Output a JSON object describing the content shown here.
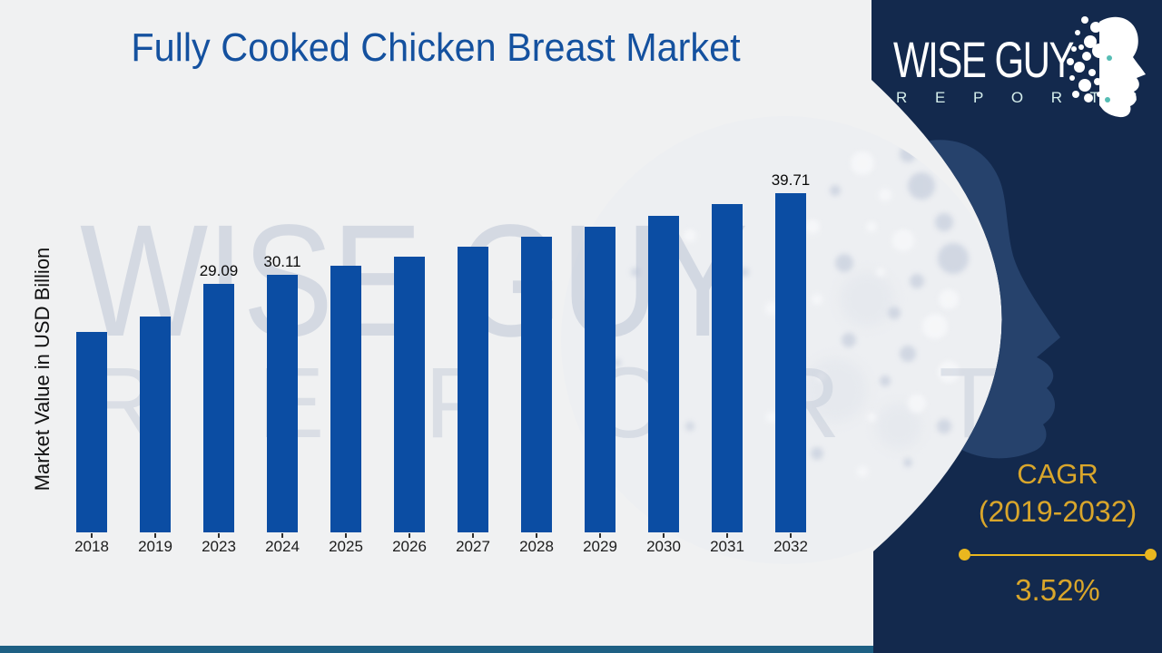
{
  "title": "Fully Cooked Chicken Breast Market",
  "watermark": {
    "line1": "WISE GUY",
    "line2": "REPORTS"
  },
  "brand": {
    "wordmark": "WISE GUY",
    "sub": "REPORTS"
  },
  "cagr": {
    "label": "CAGR",
    "range": "(2019-2032)",
    "value": "3.52%"
  },
  "chart_data": {
    "type": "bar",
    "title": "Fully Cooked Chicken Breast Market",
    "xlabel": "",
    "ylabel": "Market Value in USD Billion",
    "categories": [
      "2018",
      "2019",
      "2023",
      "2024",
      "2025",
      "2026",
      "2027",
      "2028",
      "2029",
      "2030",
      "2031",
      "2032"
    ],
    "values": [
      23.5,
      25.3,
      29.09,
      30.11,
      31.2,
      32.3,
      33.4,
      34.6,
      35.8,
      37.1,
      38.4,
      39.71
    ],
    "data_labels": {
      "2023": "29.09",
      "2024": "30.11",
      "2032": "39.71"
    },
    "bar_color": "#0b4da3",
    "ylim": [
      0,
      44
    ],
    "grid": false,
    "legend": false
  },
  "colors": {
    "background": "#f0f1f2",
    "panel_navy": "#13294d",
    "head_silhouette": "#26426c",
    "bar_blue": "#0b4da3",
    "title_blue": "#14519f",
    "accent_gold": "#d9a62b",
    "footer_teal": "#1e6084"
  }
}
